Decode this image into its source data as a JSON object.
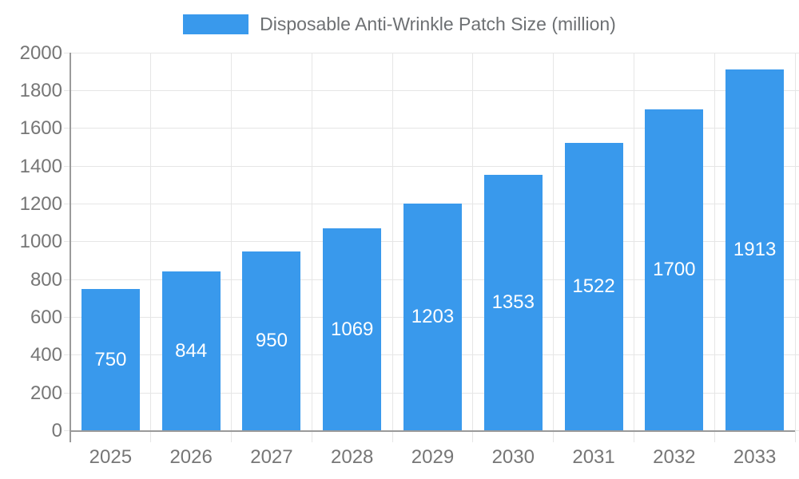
{
  "legend": {
    "label": "Disposable Anti-Wrinkle Patch Size (million)"
  },
  "chart_data": {
    "type": "bar",
    "title": "Disposable Anti-Wrinkle Patch Size (million)",
    "series_name": "Disposable Anti-Wrinkle Patch Size (million)",
    "categories": [
      "2025",
      "2026",
      "2027",
      "2028",
      "2029",
      "2030",
      "2031",
      "2032",
      "2033"
    ],
    "values": [
      750,
      844,
      950,
      1069,
      1203,
      1353,
      1522,
      1700,
      1913
    ],
    "xlabel": "",
    "ylabel": "",
    "ylim": [
      0,
      2000
    ],
    "ytick_step": 200,
    "yticks": [
      0,
      200,
      400,
      600,
      800,
      1000,
      1200,
      1400,
      1600,
      1800,
      2000
    ],
    "grid": true,
    "legend_position": "top",
    "bar_labels_visible": true,
    "bar_label_position": "inside-center",
    "colors": {
      "bar": "#3999EC",
      "bar_label": "#FFFFFF",
      "axis_text": "#767676",
      "legend_text": "#6D7073",
      "grid_line": "#E6E6E6",
      "axis_line": "#9A9A9A",
      "background": "#FFFFFF"
    }
  }
}
